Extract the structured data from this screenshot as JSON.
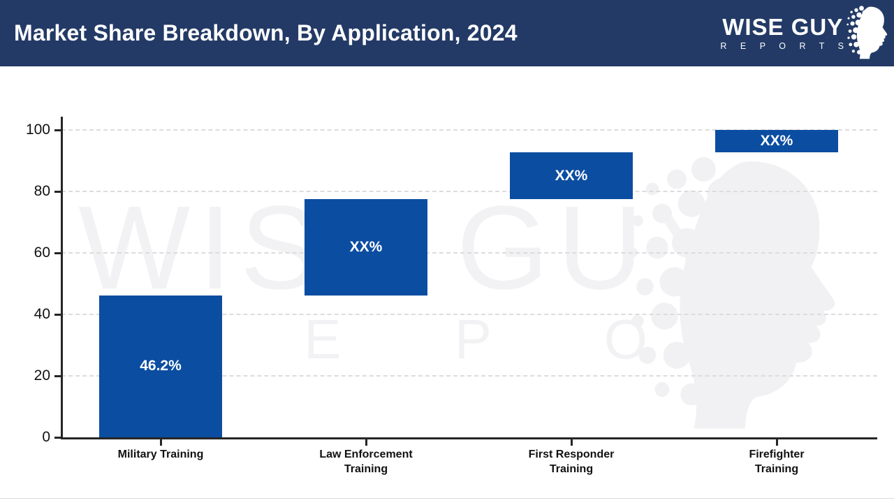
{
  "header": {
    "title": "Market Share Breakdown, By Application, 2024",
    "bg_color": "#233a66",
    "logo": {
      "line1": "WISE GUY",
      "line2": "R E P O R T S",
      "face_icon": "dotted-head-profile"
    }
  },
  "watermark": {
    "line1": "WISE GUY",
    "line2": "R E P O R T S",
    "face_icon": "dotted-head-profile",
    "color": "#f2f2f4"
  },
  "chart_data": {
    "type": "bar",
    "subtype": "waterfall",
    "title": "Market Share Breakdown, By Application, 2024",
    "categories": [
      "Military Training",
      "Law Enforcement\nTraining",
      "First Responder\nTraining",
      "Firefighter\nTraining"
    ],
    "segments": [
      {
        "category": "Military Training",
        "start": 0,
        "end": 46.2,
        "label": "46.2%"
      },
      {
        "category": "Law Enforcement Training",
        "start": 46.2,
        "end": 77.4,
        "label": "XX%"
      },
      {
        "category": "First Responder Training",
        "start": 77.4,
        "end": 92.8,
        "label": "XX%"
      },
      {
        "category": "Firefighter Training",
        "start": 92.8,
        "end": 100,
        "label": "XX%"
      }
    ],
    "ylim": [
      0,
      100
    ],
    "yticks": [
      0,
      20,
      40,
      60,
      80,
      100
    ],
    "grid": "horizontal-dashed",
    "legend": "none",
    "bar_color": "#0b4da1",
    "bar_label_color": "#ffffff",
    "axis_color": "#262626",
    "tick_label_color": "#111111"
  }
}
